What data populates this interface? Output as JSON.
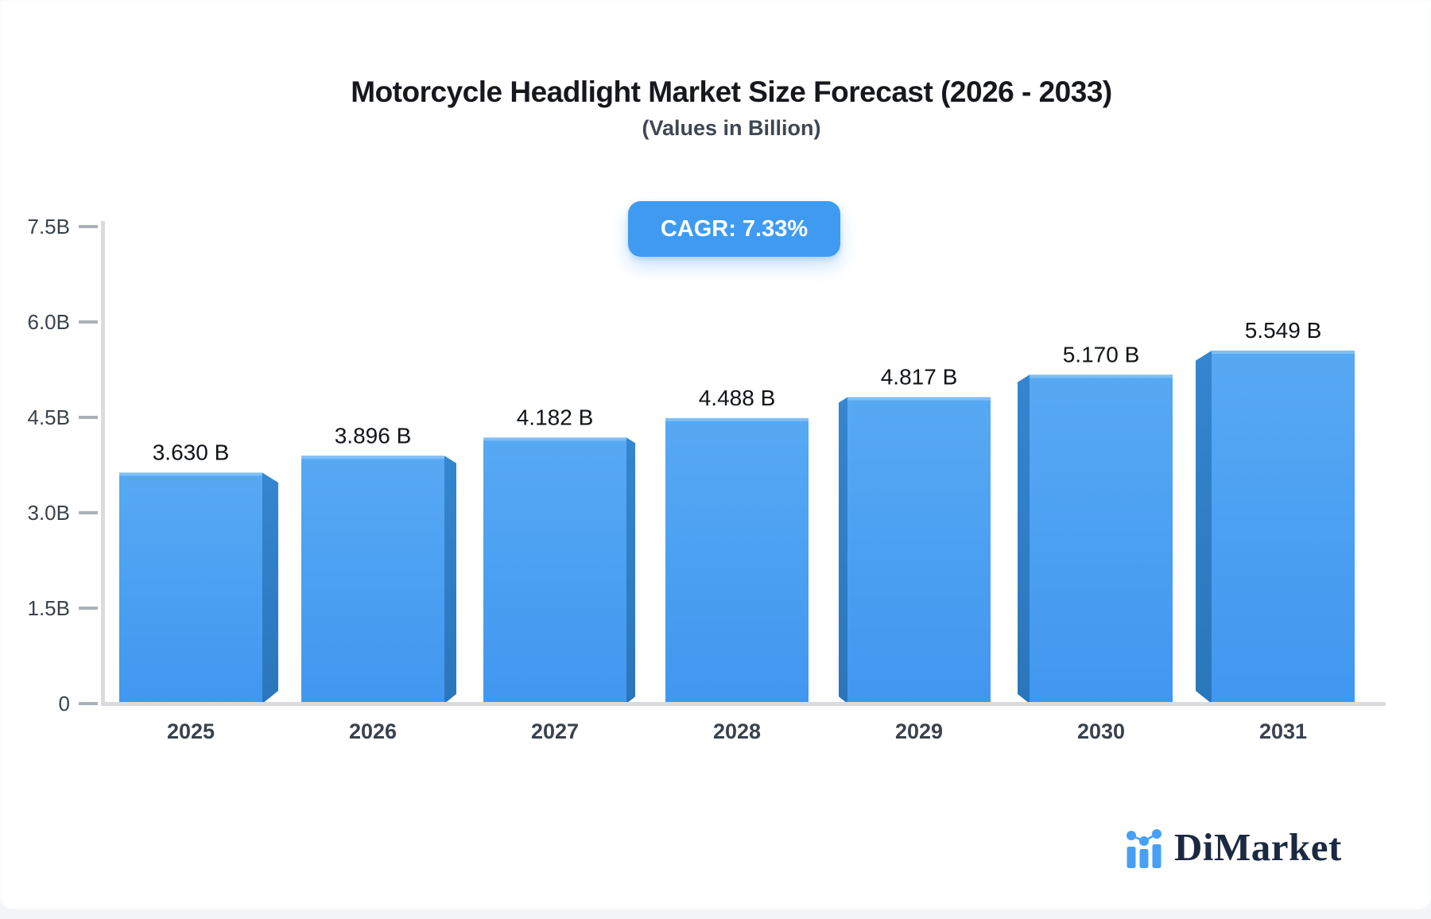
{
  "header": {
    "title": "Motorcycle Headlight Market Size Forecast (2026 - 2033)",
    "subtitle": "(Values in Billion)",
    "cagr_label": "CAGR: 7.33%"
  },
  "chart_data": {
    "type": "bar",
    "title": "Motorcycle Headlight Market Size Forecast (2026 - 2033)",
    "subtitle": "(Values in Billion)",
    "annotation": "CAGR: 7.33%",
    "categories": [
      "2025",
      "2026",
      "2027",
      "2028",
      "2029",
      "2030",
      "2031"
    ],
    "values": [
      3.63,
      3.896,
      4.182,
      4.488,
      4.817,
      5.17,
      5.549
    ],
    "value_labels": [
      "3.630 B",
      "3.896 B",
      "4.182 B",
      "4.488 B",
      "4.817 B",
      "5.170 B",
      "5.549 B"
    ],
    "xlabel": "",
    "ylabel": "",
    "ylim": [
      0,
      7.5
    ],
    "y_ticks": [
      {
        "label": "0",
        "value": 0
      },
      {
        "label": "1.5B",
        "value": 1.5
      },
      {
        "label": "3.0B",
        "value": 3.0
      },
      {
        "label": "4.5B",
        "value": 4.5
      },
      {
        "label": "6.0B",
        "value": 6.0
      },
      {
        "label": "7.5B",
        "value": 7.5
      }
    ],
    "grid": false,
    "legend_position": "none",
    "bar_style_3d": true
  },
  "colors": {
    "bar_top": "#57a9f3",
    "bar_bottom": "#4197f0",
    "bar_highlight": "#7fbef7",
    "bar_side_top": "#3486d0",
    "bar_side_bottom": "#2a76bb",
    "accent_badge": "#3f9bf2",
    "axis_line": "#d9dbde",
    "tick_dash": "#aab1b8",
    "y_label": "#3a424b",
    "x_label": "#39424d",
    "value_label": "#101418"
  },
  "branding": {
    "logo_text": "DiMarket",
    "logo_text_color": "#1b2942",
    "logo_icon": "bar-chart-dots-icon",
    "logo_icon_color": "#47a0f6"
  }
}
